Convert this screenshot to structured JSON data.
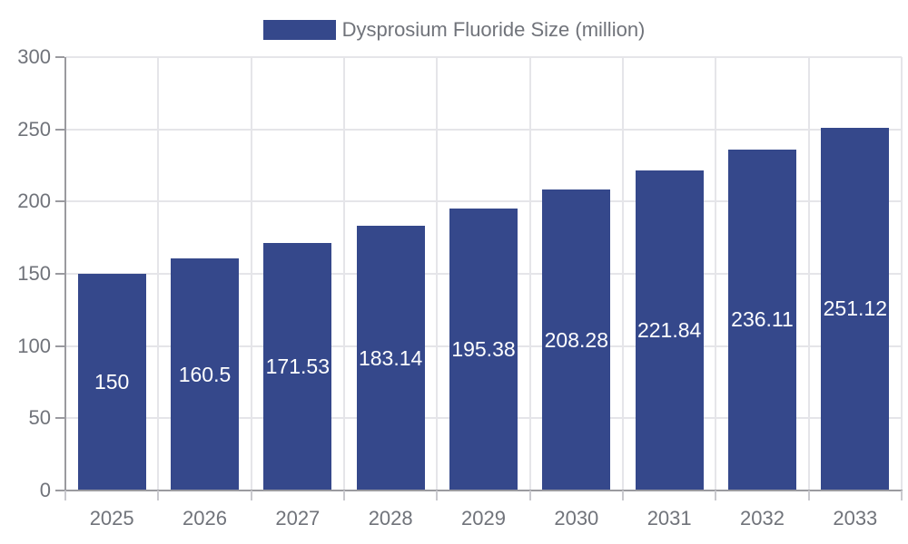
{
  "chart_data": {
    "type": "bar",
    "title": "",
    "legend_label": "Dysprosium Fluoride Size (million)",
    "legend_position": "top",
    "categories": [
      "2025",
      "2026",
      "2027",
      "2028",
      "2029",
      "2030",
      "2031",
      "2032",
      "2033"
    ],
    "values": [
      150,
      160.5,
      171.53,
      183.14,
      195.38,
      208.28,
      221.84,
      236.11,
      251.12
    ],
    "value_labels": [
      "150",
      "160.5",
      "171.53",
      "183.14",
      "195.38",
      "208.28",
      "221.84",
      "236.11",
      "251.12"
    ],
    "xlabel": "",
    "ylabel": "",
    "ylim": [
      0,
      300
    ],
    "y_ticks": [
      0,
      50,
      100,
      150,
      200,
      250,
      300
    ],
    "y_tick_labels": [
      "0",
      "50",
      "100",
      "150",
      "200",
      "250",
      "300"
    ],
    "grid": true,
    "colors": {
      "bar": "#35488B",
      "bar_label": "#FFFFFF",
      "axis_line": "#9A9A9F",
      "grid_line": "#E5E5E9",
      "x_tick": "#C9C9CE",
      "axis_text": "#70737A",
      "legend_text": "#70737A",
      "background": "#FFFFFF"
    }
  }
}
